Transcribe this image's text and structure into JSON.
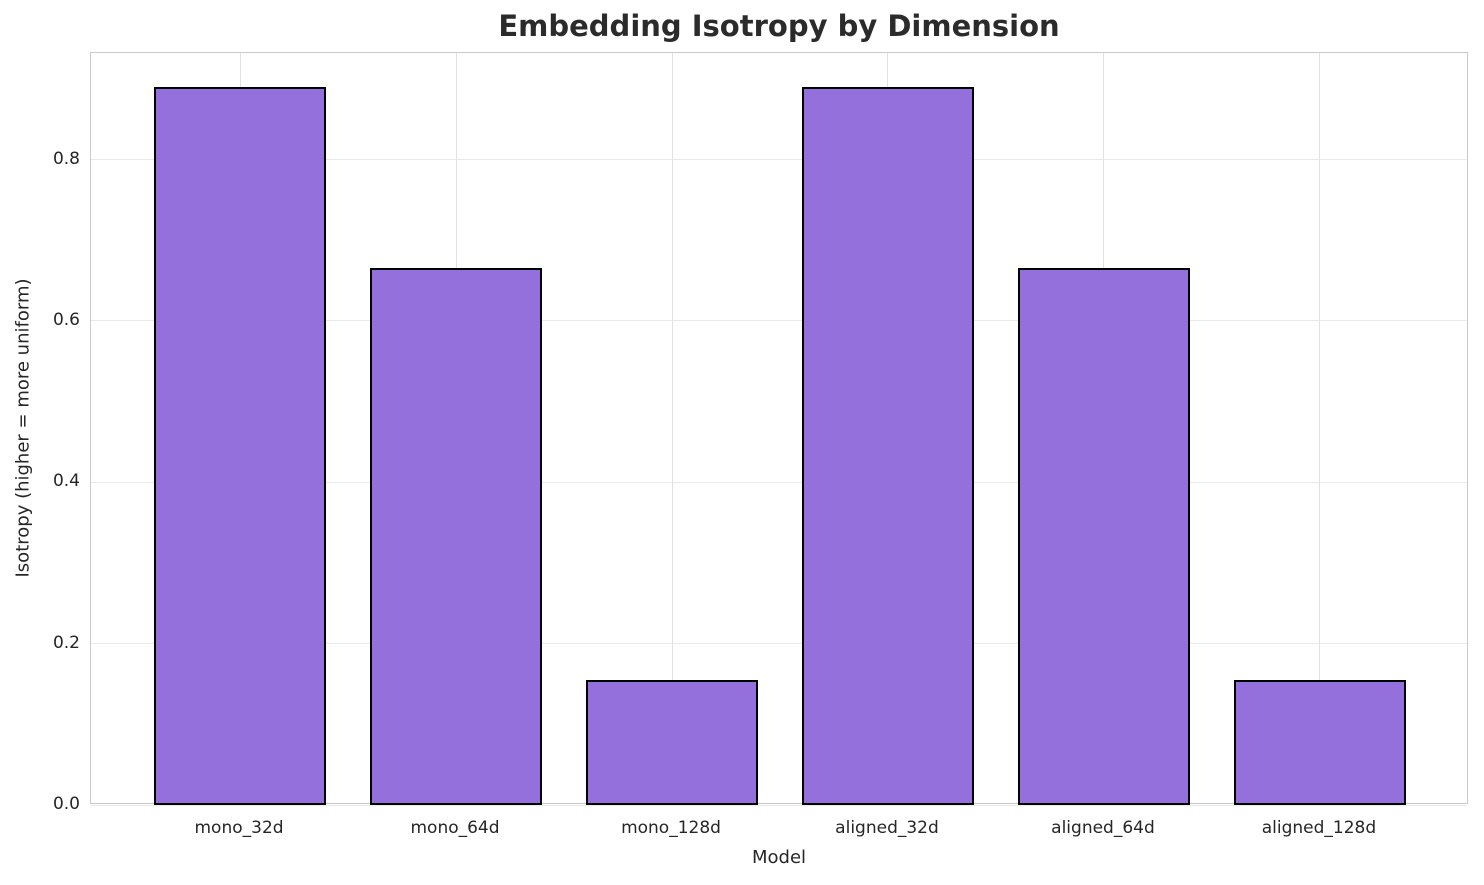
{
  "chart_data": {
    "type": "bar",
    "title": "Embedding Isotropy by Dimension",
    "xlabel": "Model",
    "ylabel": "Isotropy (higher = more uniform)",
    "categories": [
      "mono_32d",
      "mono_64d",
      "mono_128d",
      "aligned_32d",
      "aligned_64d",
      "aligned_128d"
    ],
    "values": [
      0.89,
      0.665,
      0.155,
      0.89,
      0.665,
      0.155
    ],
    "yticks": [
      0.0,
      0.2,
      0.4,
      0.6,
      0.8
    ],
    "ylim": [
      0,
      0.932
    ],
    "grid": true,
    "legend": "none",
    "style": {
      "bar_color": "#9370DB",
      "bar_edge_color": "#000000",
      "grid_color": "#e9e9e9",
      "spine_color": "#c9c9c9",
      "text_color": "#262626",
      "title_color": "#2b2b2b"
    }
  }
}
